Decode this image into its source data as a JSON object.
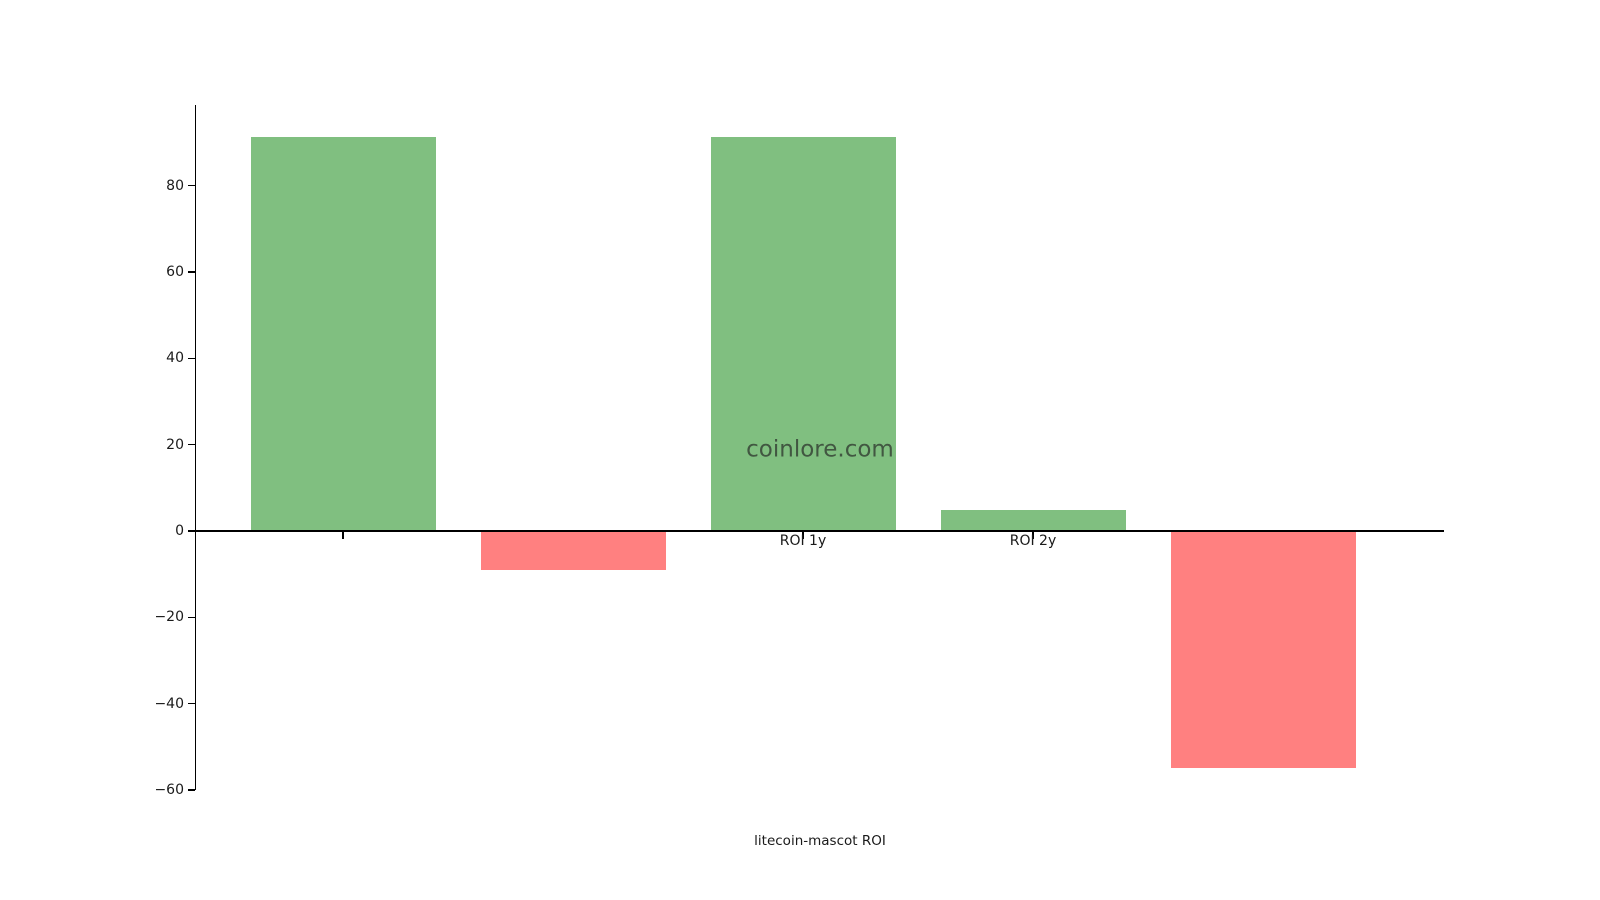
{
  "watermark": "coinlore.com",
  "chart_data": {
    "type": "bar",
    "categories": [
      "",
      "",
      "ROI 1y",
      "ROI 2y",
      ""
    ],
    "values": [
      91.3,
      -9.0,
      91.3,
      4.9,
      -54.9
    ],
    "title": "",
    "xlabel": "litecoin-mascot ROI",
    "ylabel": "",
    "ylim": [
      -64,
      99
    ],
    "yticks": [
      80,
      60,
      40,
      20,
      0,
      -20,
      -40,
      -60
    ],
    "grid": false,
    "legend": null,
    "colors": {
      "positive": "#80bf80",
      "negative": "#ff8080",
      "axis": "#000000",
      "tick_text": "#1a1a1a",
      "watermark_text": "#303a30"
    }
  }
}
